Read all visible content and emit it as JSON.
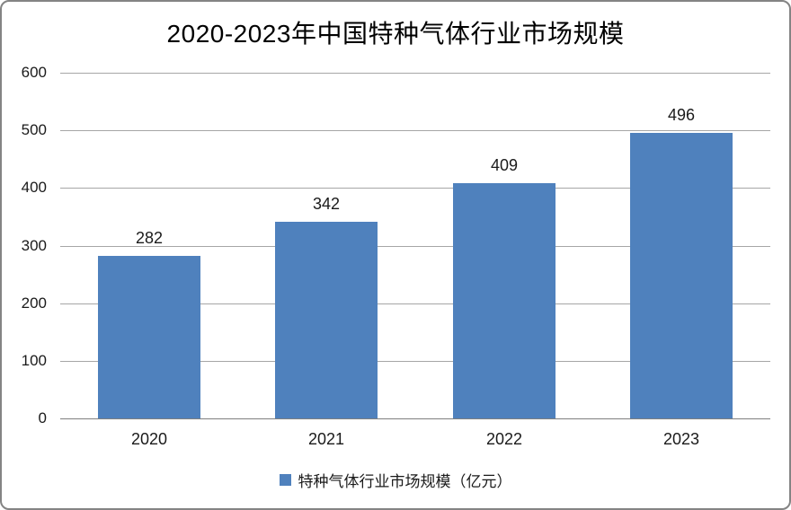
{
  "chart_data": {
    "type": "bar",
    "title": "2020-2023年中国特种气体行业市场规模",
    "categories": [
      "2020",
      "2021",
      "2022",
      "2023"
    ],
    "values": [
      282,
      342,
      409,
      496
    ],
    "data_labels": [
      "282",
      "342",
      "409",
      "496"
    ],
    "xlabel": "",
    "ylabel": "",
    "ylim": [
      0,
      600
    ],
    "yticks": [
      0,
      100,
      200,
      300,
      400,
      500,
      600
    ],
    "grid": true,
    "legend": {
      "position": "bottom",
      "label": "特种气体行业市场规模（亿元）"
    },
    "colors": {
      "bar": "#4F81BD",
      "gridline": "#A6A6A6",
      "axis_line": "#7F7F7F",
      "border": "#848484",
      "text": "#1A1A1A"
    }
  }
}
